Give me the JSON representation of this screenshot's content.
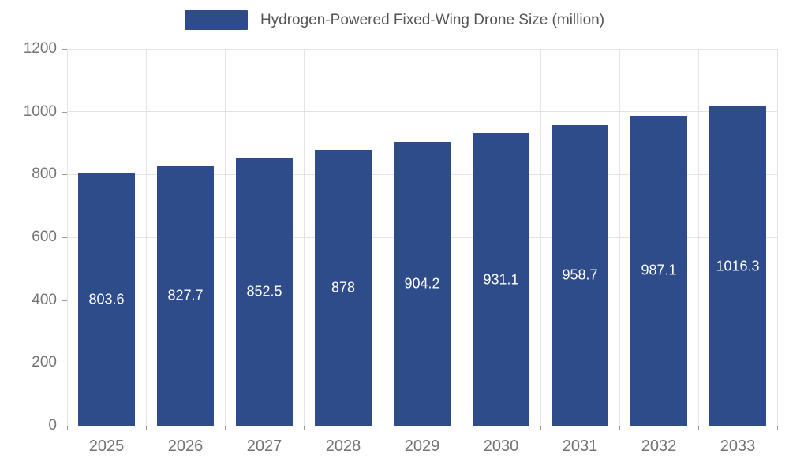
{
  "legend": {
    "label": "Hydrogen-Powered Fixed-Wing Drone Size (million)"
  },
  "colors": {
    "bar": "#2F4C8A",
    "grid": "#e3e3e3",
    "axis": "#8a8a8a",
    "tick_text": "#737373",
    "legend_text": "#555555",
    "bar_label": "#ffffff"
  },
  "chart_data": {
    "type": "bar",
    "title": "Hydrogen-Powered Fixed-Wing Drone Size (million)",
    "categories": [
      "2025",
      "2026",
      "2027",
      "2028",
      "2029",
      "2030",
      "2031",
      "2032",
      "2033"
    ],
    "values": [
      803.6,
      827.7,
      852.5,
      878,
      904.2,
      931.1,
      958.7,
      987.1,
      1016.3
    ],
    "xlabel": "",
    "ylabel": "",
    "ylim": [
      0,
      1200
    ],
    "yticks": [
      0,
      200,
      400,
      600,
      800,
      1000,
      1200
    ],
    "grid": true,
    "legend_position": "top",
    "bar_label_position": "center"
  }
}
